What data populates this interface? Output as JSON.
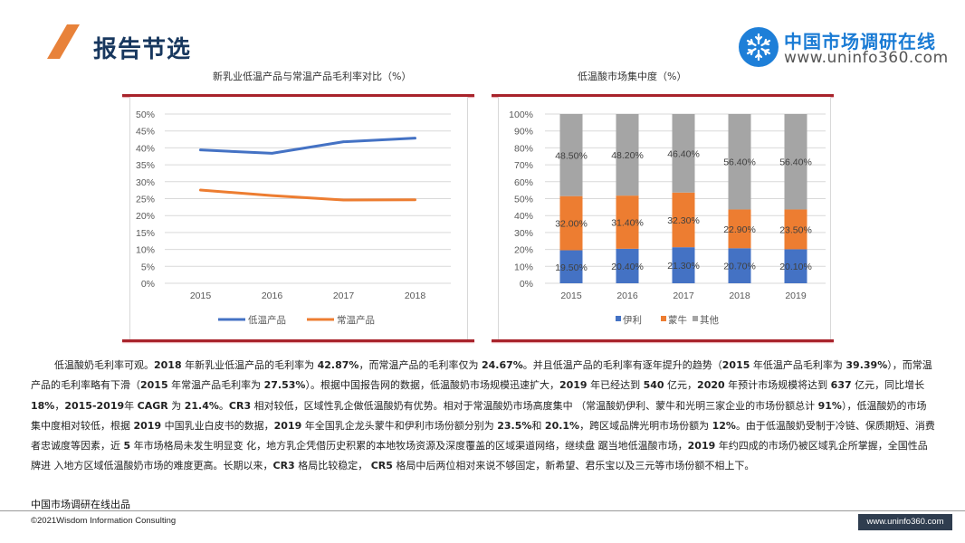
{
  "header": {
    "title": "报告节选",
    "accent_color": "#e8823a",
    "title_color": "#17375e"
  },
  "logo": {
    "icon": "snowflake-logo-icon",
    "name_cn": "中国市场调研在线",
    "url": "www.uninfo360.com"
  },
  "chart_data": [
    {
      "type": "line",
      "title": "新乳业低温产品与常温产品毛利率对比（%）",
      "x": [
        "2015",
        "2016",
        "2017",
        "2018"
      ],
      "ylim": [
        0,
        50
      ],
      "yticks": [
        "0%",
        "5%",
        "10%",
        "15%",
        "20%",
        "25%",
        "30%",
        "35%",
        "40%",
        "45%",
        "50%"
      ],
      "ytick_values": [
        0,
        5,
        10,
        15,
        20,
        25,
        30,
        35,
        40,
        45,
        50
      ],
      "grid": true,
      "legend": "bottom",
      "series": [
        {
          "name": "低温产品",
          "color": "#4472c4",
          "values": [
            39.39,
            38.4,
            41.8,
            42.87
          ]
        },
        {
          "name": "常温产品",
          "color": "#ed7d31",
          "values": [
            27.53,
            25.9,
            24.6,
            24.67
          ]
        }
      ],
      "xlabel": "",
      "ylabel": ""
    },
    {
      "type": "bar",
      "stacked": true,
      "title": "低温酸市场集中度（%）",
      "categories": [
        "2015",
        "2016",
        "2017",
        "2018",
        "2019"
      ],
      "ylim": [
        0,
        100
      ],
      "yticks": [
        "0%",
        "10%",
        "20%",
        "30%",
        "40%",
        "50%",
        "60%",
        "70%",
        "80%",
        "90%",
        "100%"
      ],
      "ytick_values": [
        0,
        10,
        20,
        30,
        40,
        50,
        60,
        70,
        80,
        90,
        100
      ],
      "grid": true,
      "legend": "bottom",
      "series": [
        {
          "name": "伊利",
          "color": "#4472c4",
          "values": [
            19.5,
            20.4,
            21.3,
            20.7,
            20.1
          ],
          "labels": [
            "19.50%",
            "20.40%",
            "21.30%",
            "20.70%",
            "20.10%"
          ]
        },
        {
          "name": "蒙牛",
          "color": "#ed7d31",
          "values": [
            32.0,
            31.4,
            32.3,
            22.9,
            23.5
          ],
          "labels": [
            "32.00%",
            "31.40%",
            "32.30%",
            "22.90%",
            "23.50%"
          ]
        },
        {
          "name": "其他",
          "color": "#a5a5a5",
          "values": [
            48.5,
            48.2,
            46.4,
            56.4,
            56.4
          ],
          "labels": [
            "48.50%",
            "48.20%",
            "46.40%",
            "56.40%",
            "56.40%"
          ]
        }
      ],
      "xlabel": "",
      "ylabel": ""
    }
  ],
  "paragraph": [
    {
      "t": "低温酸奶毛利率可观。"
    },
    {
      "t": "2018",
      "b": true
    },
    {
      "t": " 年新乳业低温产品的毛利率为 "
    },
    {
      "t": "42.87%",
      "b": true
    },
    {
      "t": "，而常温产品的毛利率仅为 "
    },
    {
      "t": "24.67%",
      "b": true
    },
    {
      "t": "。并且低温产品的毛利率有逐年提升的趋势（"
    },
    {
      "t": "2015",
      "b": true
    },
    {
      "t": " 年低温产品毛利率为 "
    },
    {
      "t": "39.39%",
      "b": true
    },
    {
      "t": "）"
    },
    {
      "t": "，而常温产品的毛利率略有下滑（"
    },
    {
      "t": "2015",
      "b": true
    },
    {
      "t": " 年常温产品毛利率为 "
    },
    {
      "t": "27.53%",
      "b": true
    },
    {
      "t": "）。根据中国报告网的数据，低温酸奶市场规模迅速扩大，"
    },
    {
      "t": "2019",
      "b": true
    },
    {
      "t": " 年已经达到 "
    },
    {
      "t": "540",
      "b": true
    },
    {
      "t": " 亿元，"
    },
    {
      "t": "2020",
      "b": true
    },
    {
      "t": " 年预计市场规模将达到 "
    },
    {
      "t": "637",
      "b": true
    },
    {
      "t": " 亿元，同比增长 "
    },
    {
      "t": "18%",
      "b": true
    },
    {
      "t": "，"
    },
    {
      "t": "2015-2019",
      "b": true
    },
    {
      "t": "年 "
    },
    {
      "t": "CAGR",
      "b": true
    },
    {
      "t": " 为 "
    },
    {
      "t": "21.4%",
      "b": true
    },
    {
      "t": "。"
    },
    {
      "t": "CR3",
      "b": true
    },
    {
      "t": " 相对较低，区域性乳企做低温酸奶有优势。相对于常温酸奶市场高度集中 （常温酸奶伊利、蒙牛和光明三家企业的市场份额总计 "
    },
    {
      "t": "91%",
      "b": true
    },
    {
      "t": "），低温酸奶的市场集中度相对较低，根据 "
    },
    {
      "t": "2019",
      "b": true
    },
    {
      "t": " 中国乳业白皮书的数据，"
    },
    {
      "t": "2019",
      "b": true
    },
    {
      "t": " 年全国乳企龙头蒙牛和伊利市场份额分别为 "
    },
    {
      "t": "23.5%",
      "b": true
    },
    {
      "t": "和 "
    },
    {
      "t": "20.1%",
      "b": true
    },
    {
      "t": "，跨区域品牌光明市场份额为 "
    },
    {
      "t": "12%",
      "b": true
    },
    {
      "t": "。由于低温酸奶受制于冷链、保质期短、消费者忠诚度等因素，近 "
    },
    {
      "t": "5",
      "b": true
    },
    {
      "t": " 年市场格局未发生明显变 化，地方乳企凭借历史积累的本地牧场资源及深度覆盖的区域渠道网络，继续盘 踞当地低温酸市场，"
    },
    {
      "t": "2019",
      "b": true
    },
    {
      "t": " 年约四成的市场仍被区域乳企所掌握，全国性品牌进 入地方区域低温酸奶市场的难度更高。长期以来，"
    },
    {
      "t": "CR3",
      "b": true
    },
    {
      "t": " 格局比较稳定， "
    },
    {
      "t": "CR5",
      "b": true
    },
    {
      "t": " 格局中后两位相对来说不够固定，新希望、君乐宝以及三元等市场份额不相上下。"
    }
  ],
  "footer": {
    "org": "中国市场调研在线出品",
    "copyright": "©2021Wisdom Information Consulting",
    "url_badge": "www.uninfo360.com"
  }
}
